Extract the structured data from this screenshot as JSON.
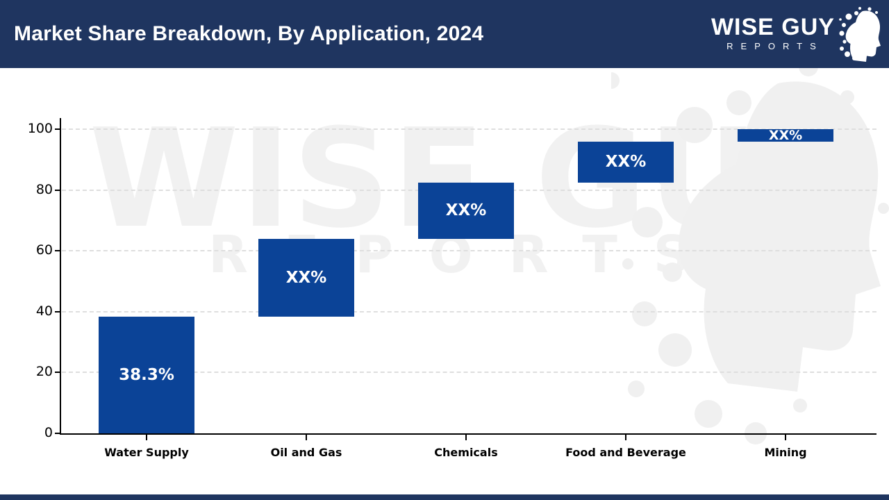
{
  "header": {
    "title": "Market Share Breakdown, By Application, 2024",
    "bg_color": "#1f3560",
    "logo": {
      "line1": "WISE GUY",
      "line2": "REPORTS",
      "head_icon": "dotted-head-profile-icon"
    }
  },
  "watermark": {
    "line1": "WISE GUY",
    "line2": "REPORTS",
    "head_icon": "dotted-head-profile-watermark",
    "color": "#f1f1f1"
  },
  "chart_data": {
    "type": "bar",
    "subtype": "waterfall",
    "title": "Market Share Breakdown, By Application, 2024",
    "categories": [
      "Water Supply",
      "Oil and Gas",
      "Chemicals",
      "Food and Beverage",
      "Mining"
    ],
    "series": [
      {
        "name": "Market Share %",
        "starts": [
          0,
          38.3,
          64,
          82.5,
          96
        ],
        "ends": [
          38.3,
          64,
          82.5,
          96,
          100
        ]
      }
    ],
    "bar_labels": [
      "38.3%",
      "XX%",
      "XX%",
      "XX%",
      "XX%"
    ],
    "xlabel": "",
    "ylabel": "",
    "ylim": [
      0,
      100
    ],
    "yticks": [
      0,
      20,
      40,
      60,
      80,
      100
    ],
    "grid": "horizontal-dashed",
    "legend": "none",
    "bar_color": "#0b4397",
    "gridline_color": "#dedede",
    "axis_color": "#000000"
  }
}
